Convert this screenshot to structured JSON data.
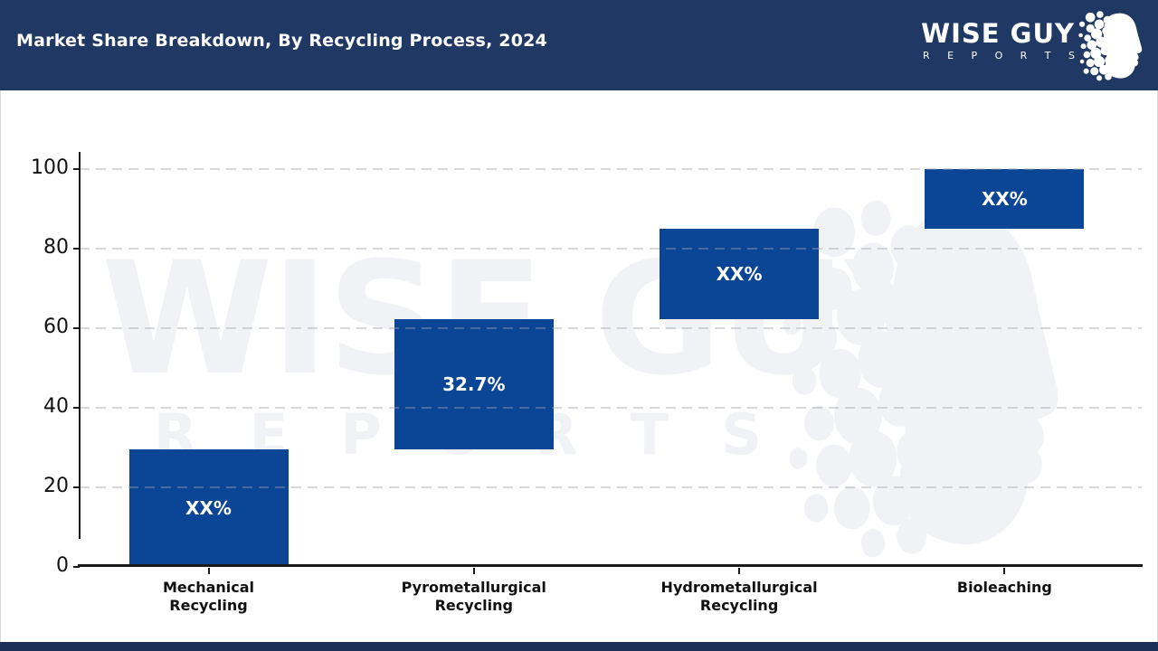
{
  "header": {
    "title": "Market Share Breakdown, By Recycling Process, 2024",
    "logo": {
      "line1": "WISE GUY",
      "line2_letters": [
        "R",
        "E",
        "P",
        "O",
        "R",
        "T",
        "S"
      ]
    }
  },
  "watermark": {
    "line1": "WISE GUY",
    "line2_letters": [
      "R",
      "E",
      "P",
      "O",
      "R",
      "T",
      "S"
    ]
  },
  "colors": {
    "header_bg": "#203864",
    "footer_bg": "#1d3156",
    "bar": "#0b4596",
    "bar_label": "#ffffff",
    "grid": "#dcdcdc",
    "axis": "#1a1a1a",
    "watermark": "#f1f2f5"
  },
  "chart_data": {
    "type": "bar",
    "subtype": "floating-waterfall",
    "title": "Market Share Breakdown, By Recycling Process, 2024",
    "categories": [
      "Mechanical Recycling",
      "Pyrometallurgical Recycling",
      "Hydrometallurgical Recycling",
      "Bioleaching"
    ],
    "category_label_lines": [
      [
        "Mechanical",
        "Recycling"
      ],
      [
        "Pyrometallurgical",
        "Recycling"
      ],
      [
        "Hydrometallurgical",
        "Recycling"
      ],
      [
        "Bioleaching"
      ]
    ],
    "segments": [
      {
        "category": "Mechanical Recycling",
        "start": 0,
        "end": 29.4,
        "label": "XX%"
      },
      {
        "category": "Pyrometallurgical Recycling",
        "start": 29.4,
        "end": 62.1,
        "label": "32.7%"
      },
      {
        "category": "Hydrometallurgical Recycling",
        "start": 62.1,
        "end": 84.8,
        "label": "XX%"
      },
      {
        "category": "Bioleaching",
        "start": 84.8,
        "end": 100,
        "label": "XX%"
      }
    ],
    "xlabel": "",
    "ylabel": "",
    "ylim": [
      0,
      105
    ],
    "yticks": [
      0,
      20,
      40,
      60,
      80,
      100
    ],
    "grid": "dashed horizontal, drawn above bars",
    "legend": "none"
  }
}
